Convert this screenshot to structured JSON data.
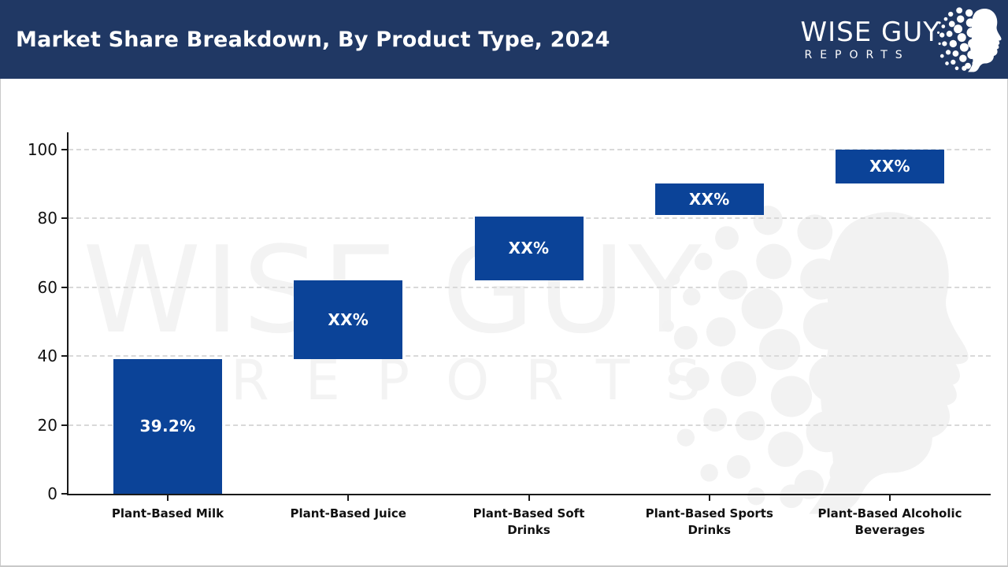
{
  "header": {
    "title": "Market Share Breakdown, By Product Type, 2024",
    "bg_color": "#203864",
    "logo": {
      "brand": "WISE GUY",
      "brand_sub": "REPORTS"
    }
  },
  "watermark": {
    "brand": "WISE GUY",
    "brand_sub": "REPORTS"
  },
  "chart_data": {
    "type": "bar",
    "subtype": "waterfall",
    "title": "Market Share Breakdown, By Product Type, 2024",
    "categories": [
      "Plant-Based Milk",
      "Plant-Based Juice",
      "Plant-Based Soft Drinks",
      "Plant-Based Sports Drinks",
      "Plant-Based Alcoholic Beverages"
    ],
    "bars": [
      {
        "category": "Plant-Based Milk",
        "start": 0,
        "end": 39.2,
        "label": "39.2%"
      },
      {
        "category": "Plant-Based Juice",
        "start": 39.2,
        "end": 62,
        "label": "XX%"
      },
      {
        "category": "Plant-Based Soft Drinks",
        "start": 62,
        "end": 80.5,
        "label": "XX%"
      },
      {
        "category": "Plant-Based Sports Drinks",
        "start": 81,
        "end": 90,
        "label": "XX%"
      },
      {
        "category": "Plant-Based Alcoholic Beverages",
        "start": 90,
        "end": 100,
        "label": "XX%"
      }
    ],
    "y_ticks": [
      0,
      20,
      40,
      60,
      80,
      100
    ],
    "ylim": [
      0,
      105
    ],
    "xlabel": "",
    "ylabel": "",
    "grid": {
      "horizontal": true,
      "style": "dashed",
      "color": "#d9d9d9"
    },
    "bar_color": "#0b4398",
    "bar_label_color": "#ffffff",
    "legend": null
  }
}
